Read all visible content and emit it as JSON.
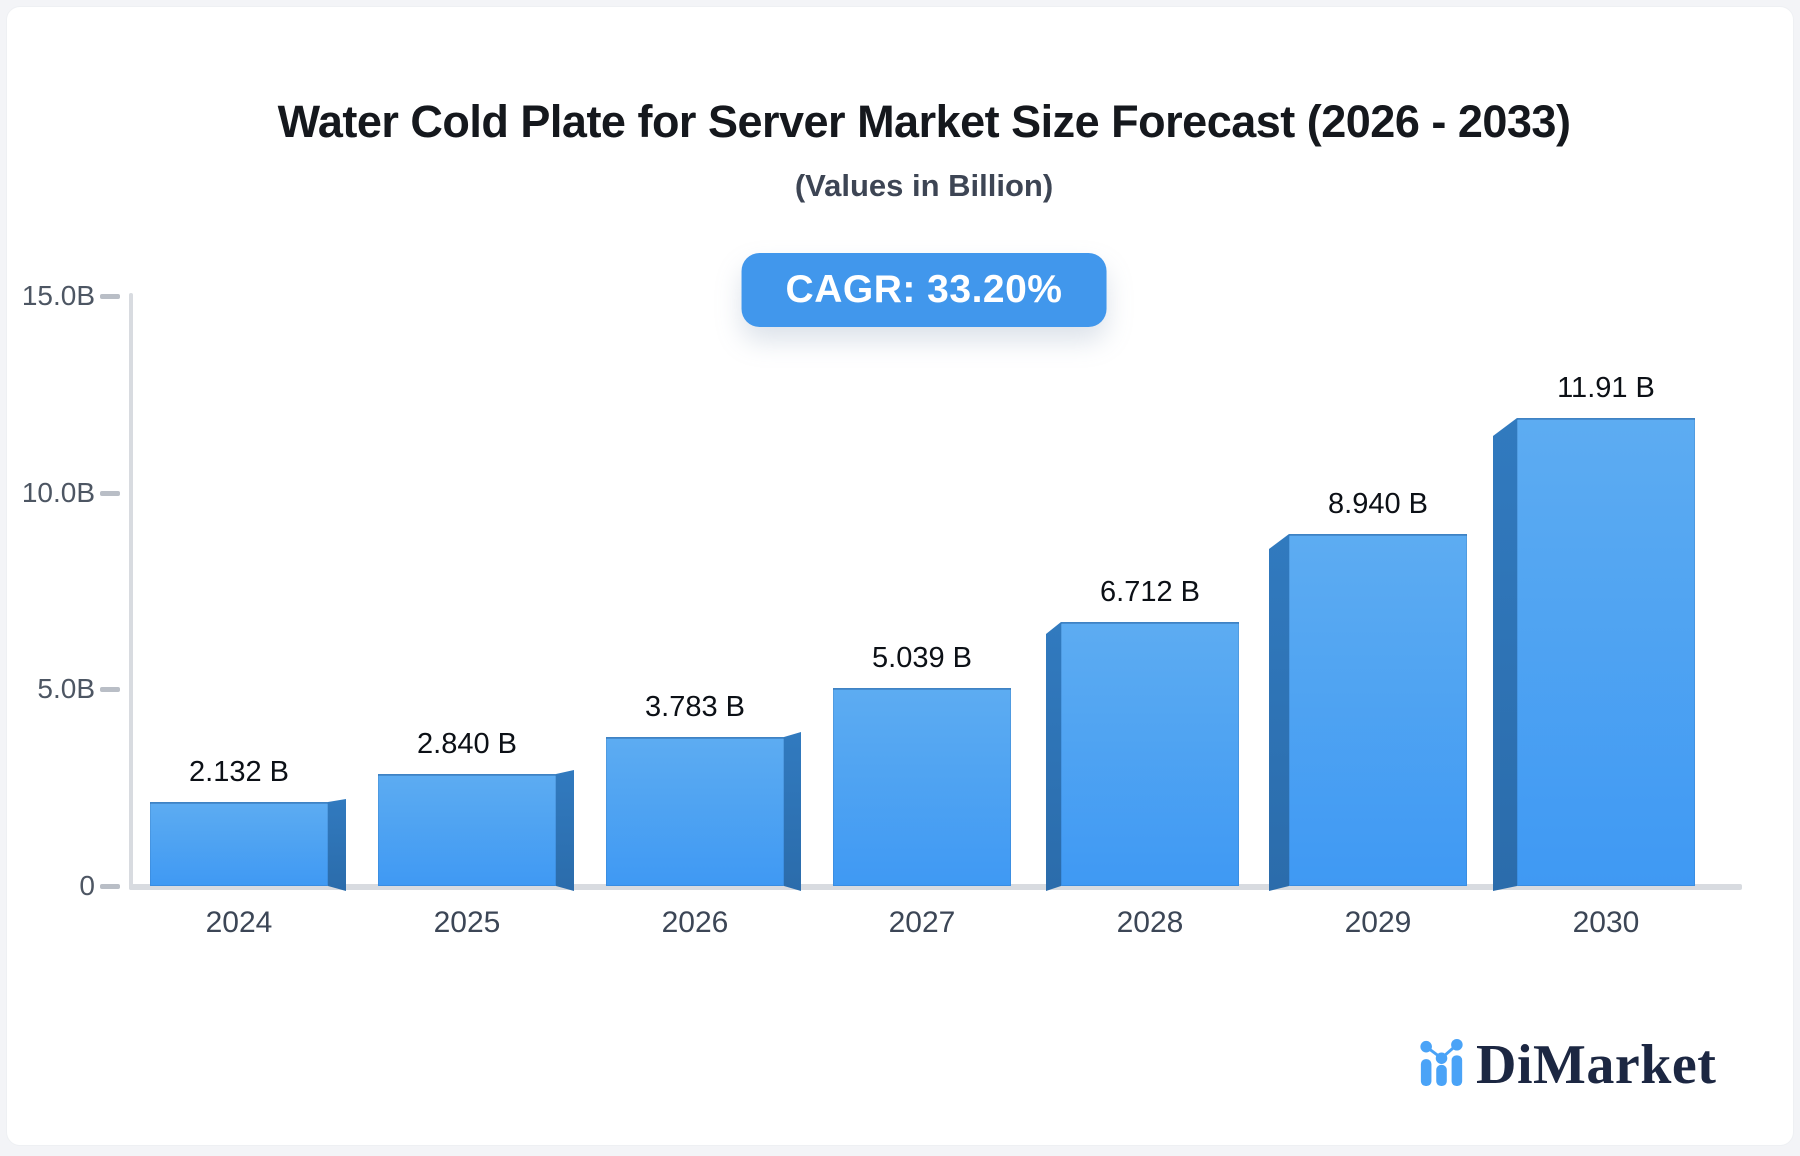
{
  "header": {
    "title": "Water Cold Plate for Server Market Size Forecast (2026 - 2033)",
    "subtitle": "(Values in Billion)"
  },
  "badge": {
    "label": "CAGR: 33.20%",
    "background": "#4197ec",
    "text_color": "#ffffff"
  },
  "chart_data": {
    "type": "bar",
    "style": "3d",
    "title": "Water Cold Plate for Server Market Size Forecast (2026 - 2033)",
    "subtitle": "(Values in Billion)",
    "unit": "Billion",
    "cagr": "33.20%",
    "categories": [
      "2024",
      "2025",
      "2026",
      "2027",
      "2028",
      "2029",
      "2030"
    ],
    "values": [
      2.132,
      2.84,
      3.783,
      5.039,
      6.712,
      8.94,
      11.91
    ],
    "value_labels": [
      "2.132 B",
      "2.840 B",
      "3.783 B",
      "5.039 B",
      "6.712 B",
      "8.940 B",
      "11.91 B"
    ],
    "y_axis": {
      "min": 0,
      "max": 15,
      "ticks": [
        {
          "label": "15.0B",
          "value": 15
        },
        {
          "label": "10.0B",
          "value": 10
        },
        {
          "label": "5.0B",
          "value": 5
        },
        {
          "label": "0",
          "value": 0
        }
      ]
    },
    "xlabel": "",
    "ylabel": "",
    "grid": false,
    "legend": false,
    "bar_face_color_top": "#5dacf2",
    "bar_face_color_bottom": "#3f99f3",
    "bar_side_color": "#2e74b8"
  },
  "footer": {
    "brand": "DiMarket",
    "logo_icon": "bar-chart-logo-icon",
    "brand_color": "#1c2742",
    "icon_color": "#4aa3f7"
  }
}
